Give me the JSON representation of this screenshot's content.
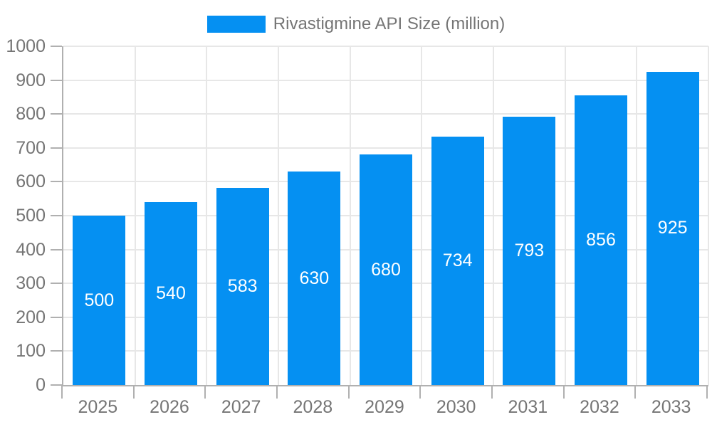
{
  "legend": {
    "items": [
      {
        "label": "Rivastigmine API Size (million)",
        "color": "#0590f2"
      }
    ]
  },
  "chart_data": {
    "type": "bar",
    "title": "Rivastigmine API Size (million)",
    "categories": [
      "2025",
      "2026",
      "2027",
      "2028",
      "2029",
      "2030",
      "2031",
      "2032",
      "2033"
    ],
    "values": [
      500,
      540,
      583,
      630,
      680,
      734,
      793,
      856,
      925
    ],
    "series": [
      {
        "name": "Rivastigmine API Size (million)",
        "values": [
          500,
          540,
          583,
          630,
          680,
          734,
          793,
          856,
          925
        ]
      }
    ],
    "xlabel": "",
    "ylabel": "",
    "ylim": [
      0,
      1000
    ],
    "ytick_step": 100,
    "yticks": [
      0,
      100,
      200,
      300,
      400,
      500,
      600,
      700,
      800,
      900,
      1000
    ],
    "grid": true,
    "grid_lines": "horizontal-and-vertical",
    "legend_position": "top-center",
    "value_labels": "inside-center",
    "colors": {
      "bar": "#0590f2",
      "value_label": "#ffffff",
      "axis": "#b0b0b0",
      "grid": "#e7e7e7",
      "tick_text": "#757575"
    }
  }
}
